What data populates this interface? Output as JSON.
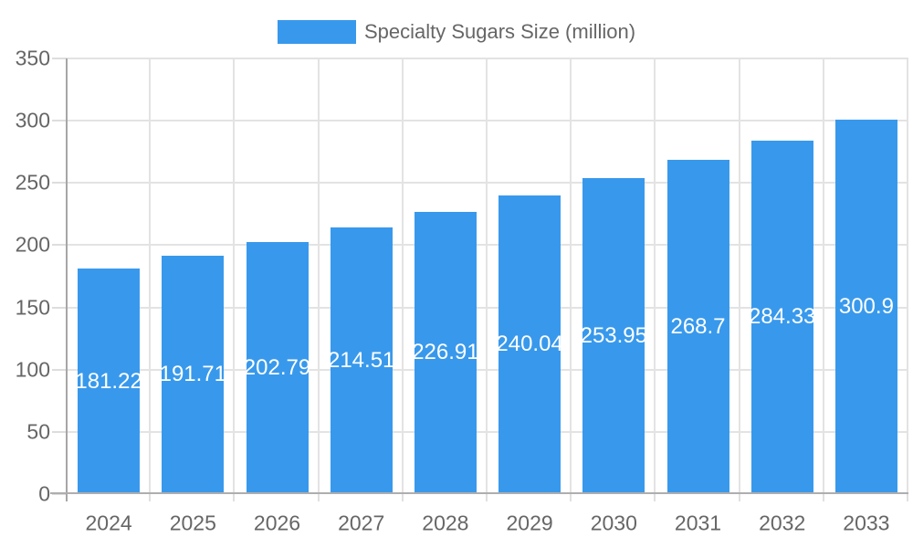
{
  "chart_data": {
    "type": "bar",
    "legend_label": "Specialty Sugars Size (million)",
    "series": [
      {
        "name": "Specialty Sugars Size (million)",
        "values": [
          181.22,
          191.71,
          202.79,
          214.51,
          226.91,
          240.04,
          253.95,
          268.7,
          284.33,
          300.9
        ]
      }
    ],
    "categories": [
      "2024",
      "2025",
      "2026",
      "2027",
      "2028",
      "2029",
      "2030",
      "2031",
      "2032",
      "2033"
    ],
    "data_labels": [
      "181.22",
      "191.71",
      "202.79",
      "214.51",
      "226.91",
      "240.04",
      "253.95",
      "268.7",
      "284.33",
      "300.9"
    ],
    "yticks": [
      0,
      50,
      100,
      150,
      200,
      250,
      300,
      350
    ],
    "ylim": [
      0,
      350
    ],
    "xlabel": "",
    "ylabel": "",
    "title": "",
    "grid": true,
    "legend_position": "top",
    "colors": {
      "bar": "#3899ec",
      "bar_label_text": "#ffffff",
      "axis_text": "#666666",
      "gridline": "#e3e3e3",
      "axis_line": "#aeaeae"
    }
  }
}
